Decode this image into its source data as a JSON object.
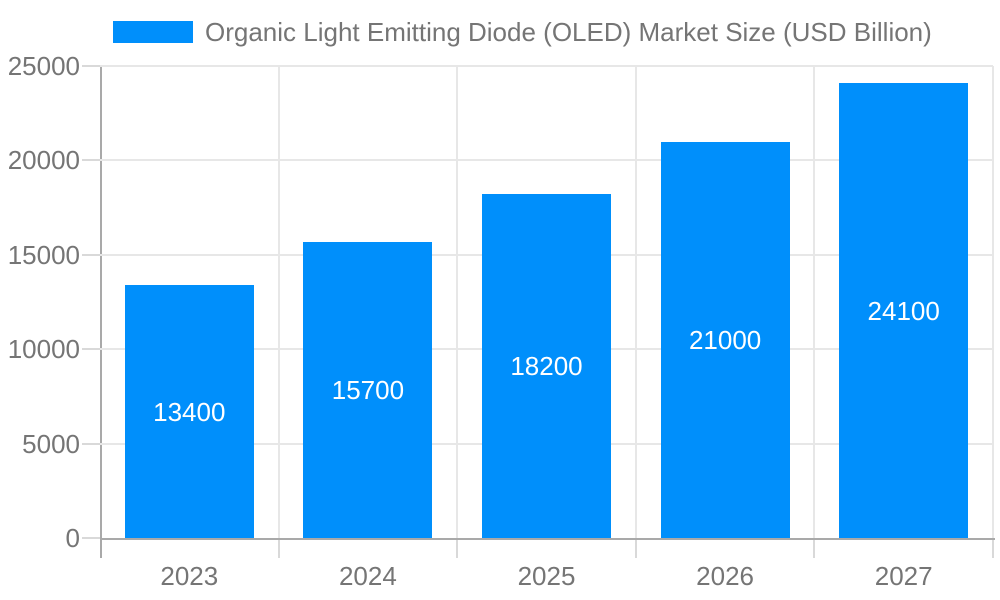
{
  "chart_data": {
    "type": "bar",
    "title": "Organic Light Emitting Diode (OLED) Market Size (USD Billion)",
    "categories": [
      "2023",
      "2024",
      "2025",
      "2026",
      "2027"
    ],
    "values": [
      13400,
      15700,
      18200,
      21000,
      24100
    ],
    "data_labels": [
      "13400",
      "15700",
      "18200",
      "21000",
      "24100"
    ],
    "xlabel": "",
    "ylabel": "",
    "ylim": [
      0,
      25000
    ],
    "yticks": [
      0,
      5000,
      10000,
      15000,
      20000,
      25000
    ],
    "ytick_labels": [
      "0",
      "5000",
      "10000",
      "15000",
      "20000",
      "25000"
    ],
    "grid": "horizontal-and-vertical",
    "legend_position": "top-left",
    "colors": {
      "bar": "#008FFB",
      "text": "#757575",
      "grid": "#e7e7e7",
      "axis": "#a9a9a9",
      "tick": "#d9d9d9",
      "value_label": "#ffffff",
      "background": "#ffffff"
    }
  }
}
